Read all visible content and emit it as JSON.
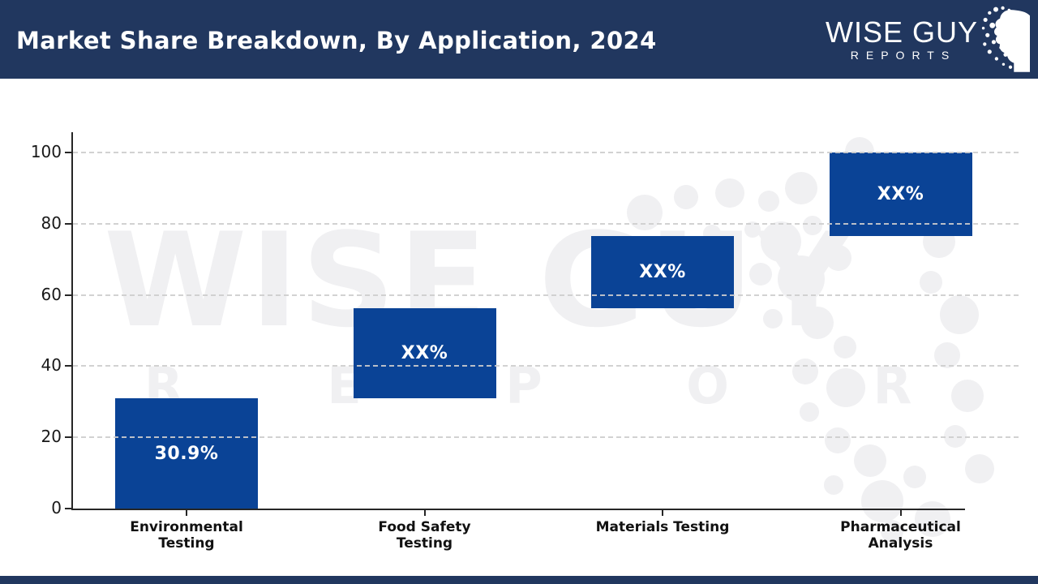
{
  "header": {
    "title": "Market Share Breakdown, By Application, 2024"
  },
  "logo": {
    "line1": "WISE GUY",
    "line2": "REPORTS"
  },
  "watermark": {
    "line1": "WISE GUY",
    "line2": "R E P O R T S"
  },
  "colors": {
    "header_bg": "#21375f",
    "bar_blue": "#0a4396",
    "watermark_gray": "#f0f0f2",
    "gridline_gray": "#cdcdcd",
    "axis_black": "#262626",
    "bar_label_white": "#ffffff"
  },
  "chart_data": {
    "type": "bar",
    "variant": "waterfall",
    "title": "Market Share Breakdown, By Application, 2024",
    "categories": [
      "Environmental Testing",
      "Food Safety Testing",
      "Materials Testing",
      "Pharmaceutical Analysis"
    ],
    "categories_display": [
      "Environmental\nTesting",
      "Food Safety\nTesting",
      "Materials Testing",
      "Pharmaceutical\nAnalysis"
    ],
    "segments": [
      {
        "category": "Environmental Testing",
        "start": 0,
        "end": 30.9,
        "label": "30.9%"
      },
      {
        "category": "Food Safety Testing",
        "start": 30.9,
        "end": 56.3,
        "label": "XX%"
      },
      {
        "category": "Materials Testing",
        "start": 56.3,
        "end": 76.6,
        "label": "XX%"
      },
      {
        "category": "Pharmaceutical Analysis",
        "start": 76.6,
        "end": 100,
        "label": "XX%"
      }
    ],
    "xlabel": "",
    "ylabel": "",
    "ylim": [
      0,
      100
    ],
    "yticks": [
      0,
      20,
      40,
      60,
      80,
      100
    ],
    "grid": "horizontal-dashed",
    "legend": "none",
    "bar_color": "#0a4396"
  }
}
